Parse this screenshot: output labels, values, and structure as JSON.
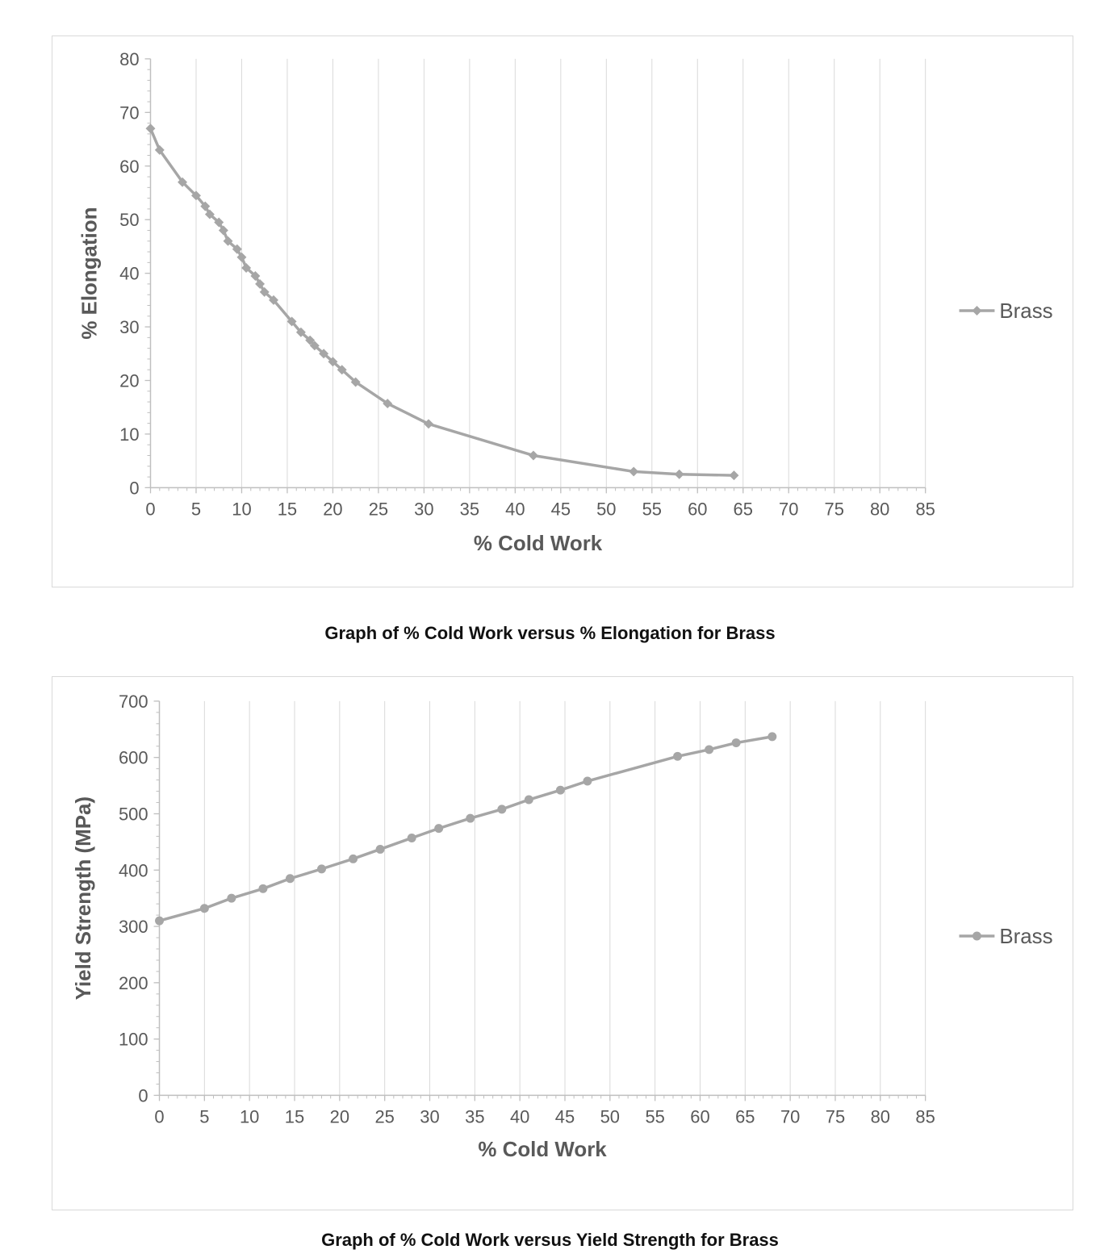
{
  "captions": {
    "chart1": "Graph of % Cold Work versus % Elongation for Brass",
    "chart2": "Graph of % Cold Work versus Yield Strength for Brass"
  },
  "colors": {
    "series": "#a6a6a6",
    "labels": "#595959",
    "grid": "#d9d9d9",
    "axis": "#bfbfbf"
  },
  "chart_data": [
    {
      "type": "line",
      "title": "",
      "xlabel": "% Cold Work",
      "ylabel": "% Elongation",
      "xlim": [
        0,
        85
      ],
      "ylim": [
        0,
        80
      ],
      "xtick_step": 5,
      "ytick_step": 10,
      "x_minor_step": 1,
      "y_minor_step": 2,
      "grid": "vertical",
      "legend_position": "right",
      "marker": "diamond",
      "line_color": "#a6a6a6",
      "label_color": "#595959",
      "grid_color": "#d9d9d9",
      "axis_color": "#bfbfbf",
      "series": [
        {
          "name": "Brass",
          "x": [
            0,
            1,
            3.5,
            5,
            6,
            6.5,
            7.5,
            8,
            8.5,
            9.5,
            10,
            10.5,
            11.5,
            12,
            12.5,
            13.5,
            15.5,
            16.5,
            17.5,
            18,
            19,
            20,
            21,
            22.5,
            26,
            30.5,
            42,
            53,
            58,
            64
          ],
          "y": [
            67,
            63,
            57,
            54.5,
            52.5,
            51,
            49.5,
            48,
            46,
            44.5,
            43,
            41,
            39.5,
            38,
            36.5,
            35,
            31,
            29,
            27.5,
            26.5,
            25,
            23.5,
            22,
            19.7,
            15.7,
            11.9,
            6,
            3,
            2.5,
            2.3
          ]
        }
      ]
    },
    {
      "type": "line",
      "title": "",
      "xlabel": "% Cold Work",
      "ylabel": "Yield Strength (MPa)",
      "xlim": [
        0,
        85
      ],
      "ylim": [
        0,
        700
      ],
      "xtick_step": 5,
      "ytick_step": 100,
      "x_minor_step": 1,
      "y_minor_step": 20,
      "grid": "vertical",
      "legend_position": "right",
      "marker": "circle",
      "line_color": "#a6a6a6",
      "label_color": "#595959",
      "grid_color": "#d9d9d9",
      "axis_color": "#bfbfbf",
      "series": [
        {
          "name": "Brass",
          "x": [
            0,
            5,
            8,
            11.5,
            14.5,
            18,
            21.5,
            24.5,
            28,
            31,
            34.5,
            38,
            41,
            44.5,
            47.5,
            57.5,
            61,
            64,
            68
          ],
          "y": [
            310,
            332,
            350,
            367,
            385,
            402,
            420,
            437,
            457,
            474,
            492,
            508,
            525,
            542,
            558,
            602,
            614,
            626,
            637
          ]
        }
      ]
    }
  ]
}
